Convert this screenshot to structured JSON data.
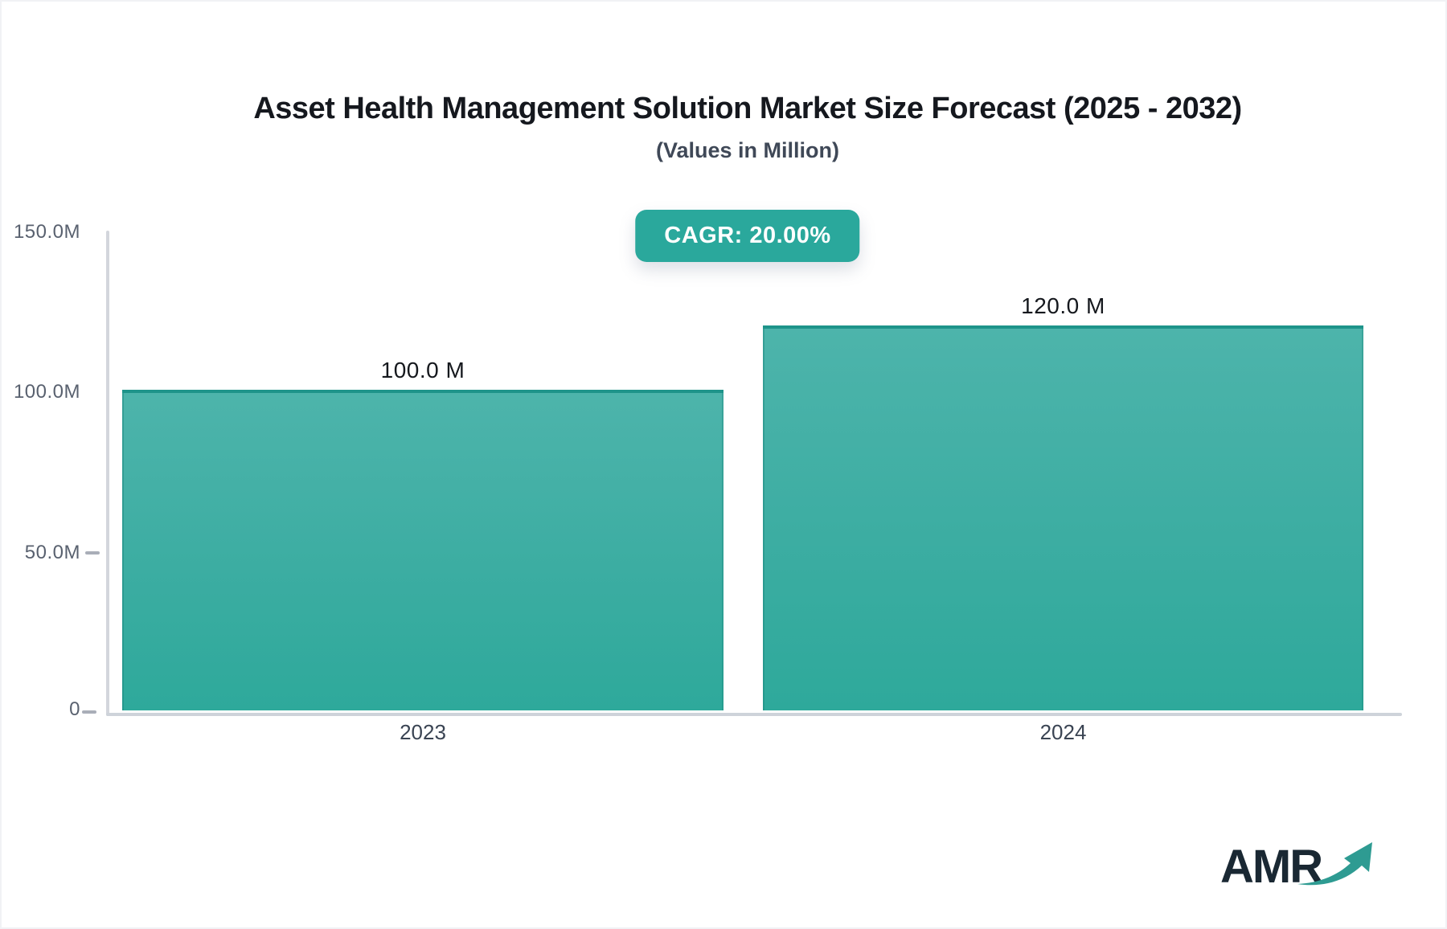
{
  "header": {
    "title": "Asset Health Management Solution Market Size Forecast (2025 - 2032)",
    "subtitle": "(Values in Million)",
    "cagr_badge": "CAGR: 20.00%"
  },
  "chart_data": {
    "type": "bar",
    "title": "Asset Health Management Solution Market Size Forecast (2025 - 2032)",
    "subtitle": "(Values in Million)",
    "unit": "Million",
    "cagr_percent": "20.00%",
    "categories": [
      "2023",
      "2024"
    ],
    "values": [
      100.0,
      120.0
    ],
    "value_labels": [
      "100.0 M",
      "120.0 M"
    ],
    "ylim": [
      0,
      150
    ],
    "yticks": [
      "150.0M",
      "100.0M",
      "50.0M",
      "0"
    ],
    "grid": false,
    "legend": "none",
    "colors": {
      "bar_gradient_top": "#4db4ab",
      "bar_gradient_bottom": "#2ea99b",
      "bar_top_border": "#1e948a",
      "badge_background": "#2aa89c",
      "axis_line": "#d3d6dc",
      "tick_text": "#59616f"
    }
  },
  "footer": {
    "logo_text": "AMR"
  }
}
